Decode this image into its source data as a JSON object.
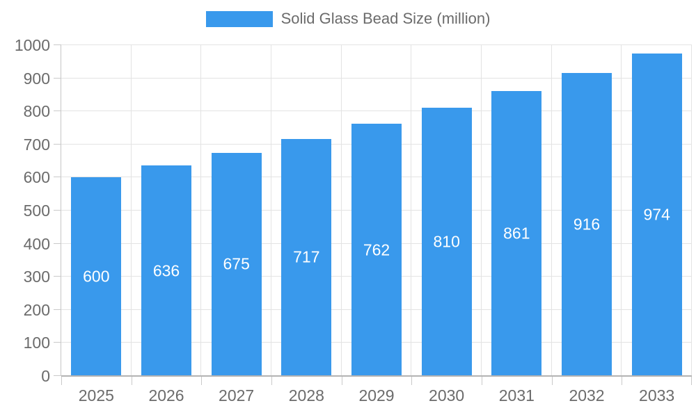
{
  "legend": {
    "label": "Solid Glass Bead Size (million)"
  },
  "chart_data": {
    "type": "bar",
    "title": "",
    "xlabel": "",
    "ylabel": "",
    "categories": [
      "2025",
      "2026",
      "2027",
      "2028",
      "2029",
      "2030",
      "2031",
      "2032",
      "2033"
    ],
    "series": [
      {
        "name": "Solid Glass Bead Size (million)",
        "values": [
          600,
          636,
          675,
          717,
          762,
          810,
          861,
          916,
          974
        ]
      }
    ],
    "data_labels_shown": true,
    "ylim": [
      0,
      1000
    ],
    "yticks": [
      0,
      100,
      200,
      300,
      400,
      500,
      600,
      700,
      800,
      900,
      1000
    ],
    "grid": true,
    "legend_position": "top-center"
  },
  "style": {
    "bar_color": "#3999ec",
    "grid_color": "#e3e3e3",
    "x_axis_line_color": "#b3b3b3",
    "y_axis_line_color": "#c6c6c6",
    "tick_color": "#c9c9c9",
    "axis_text_color": "#6b6b6b",
    "value_label_color": "#ffffff",
    "background_color": "#ffffff"
  }
}
